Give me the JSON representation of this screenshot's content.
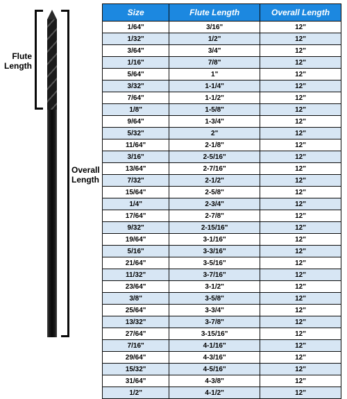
{
  "diagram": {
    "flute_label_line1": "Flute",
    "flute_label_line2": "Length",
    "overall_label_line1": "Overall",
    "overall_label_line2": "Length"
  },
  "table": {
    "header_bg": "#1c88e0",
    "row_alt_bg": "#d7e6f4",
    "border_color": "#0a0a0a",
    "columns": [
      "Size",
      "Flute Length",
      "Overall Length"
    ],
    "rows": [
      [
        "1/64\"",
        "3/16\"",
        "12\""
      ],
      [
        "1/32\"",
        "1/2\"",
        "12\""
      ],
      [
        "3/64\"",
        "3/4\"",
        "12\""
      ],
      [
        "1/16\"",
        "7/8\"",
        "12\""
      ],
      [
        "5/64\"",
        "1\"",
        "12\""
      ],
      [
        "3/32\"",
        "1-1/4\"",
        "12\""
      ],
      [
        "7/64\"",
        "1-1/2\"",
        "12\""
      ],
      [
        "1/8\"",
        "1-5/8\"",
        "12\""
      ],
      [
        "9/64\"",
        "1-3/4\"",
        "12\""
      ],
      [
        "5/32\"",
        "2\"",
        "12\""
      ],
      [
        "11/64\"",
        "2-1/8\"",
        "12\""
      ],
      [
        "3/16\"",
        "2-5/16\"",
        "12\""
      ],
      [
        "13/64\"",
        "2-7/16\"",
        "12\""
      ],
      [
        "7/32\"",
        "2-1/2\"",
        "12\""
      ],
      [
        "15/64\"",
        "2-5/8\"",
        "12\""
      ],
      [
        "1/4\"",
        "2-3/4\"",
        "12\""
      ],
      [
        "17/64\"",
        "2-7/8\"",
        "12\""
      ],
      [
        "9/32\"",
        "2-15/16\"",
        "12\""
      ],
      [
        "19/64\"",
        "3-1/16\"",
        "12\""
      ],
      [
        "5/16\"",
        "3-3/16\"",
        "12\""
      ],
      [
        "21/64\"",
        "3-5/16\"",
        "12\""
      ],
      [
        "11/32\"",
        "3-7/16\"",
        "12\""
      ],
      [
        "23/64\"",
        "3-1/2\"",
        "12\""
      ],
      [
        "3/8\"",
        "3-5/8\"",
        "12\""
      ],
      [
        "25/64\"",
        "3-3/4\"",
        "12\""
      ],
      [
        "13/32\"",
        "3-7/8\"",
        "12\""
      ],
      [
        "27/64\"",
        "3-15/16\"",
        "12\""
      ],
      [
        "7/16\"",
        "4-1/16\"",
        "12\""
      ],
      [
        "29/64\"",
        "4-3/16\"",
        "12\""
      ],
      [
        "15/32\"",
        "4-5/16\"",
        "12\""
      ],
      [
        "31/64\"",
        "4-3/8\"",
        "12\""
      ],
      [
        "1/2\"",
        "4-1/2\"",
        "12\""
      ]
    ]
  }
}
